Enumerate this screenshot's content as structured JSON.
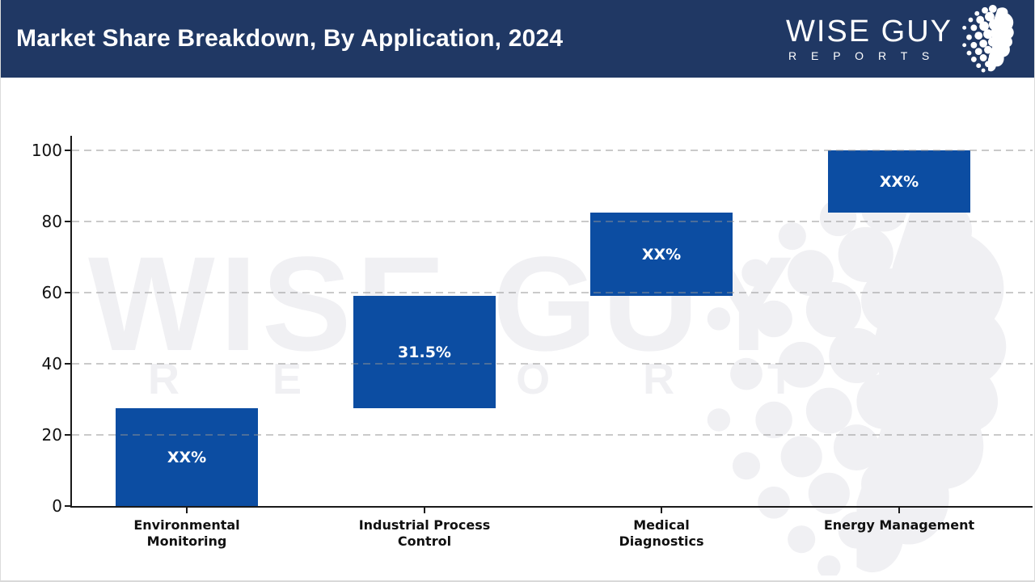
{
  "header": {
    "title": "Market Share Breakdown, By Application, 2024",
    "bg_color": "#203864",
    "logo_line1": "WISE GUY",
    "logo_line2": "R E P O R T S"
  },
  "watermark": {
    "line1": "WISE GUY",
    "line2": "R E P O R T S"
  },
  "chart_data": {
    "type": "bar",
    "variant": "waterfall",
    "title": "Market Share Breakdown, By Application, 2024",
    "categories": [
      [
        "Environmental",
        "Monitoring"
      ],
      [
        "Industrial Process",
        "Control"
      ],
      [
        "Medical",
        "Diagnostics"
      ],
      [
        "Energy Management"
      ]
    ],
    "segments": [
      {
        "category": "Environmental Monitoring",
        "start": 0,
        "end": 27.5,
        "label": "XX%"
      },
      {
        "category": "Industrial Process Control",
        "start": 27.5,
        "end": 59,
        "label": "31.5%"
      },
      {
        "category": "Medical Diagnostics",
        "start": 59,
        "end": 82.5,
        "label": "XX%"
      },
      {
        "category": "Energy Management",
        "start": 82.5,
        "end": 100,
        "label": "XX%"
      }
    ],
    "ylim": [
      0,
      100
    ],
    "yticks": [
      0,
      20,
      40,
      60,
      80,
      100
    ],
    "xlabel": "",
    "ylabel": "",
    "grid": "horizontal-dashed",
    "legend": "none",
    "bar_color": "#0c4da2",
    "bar_label_color": "#ffffff",
    "axis_color": "#1a1a1a",
    "gridline_color": "#d9d9d9"
  }
}
